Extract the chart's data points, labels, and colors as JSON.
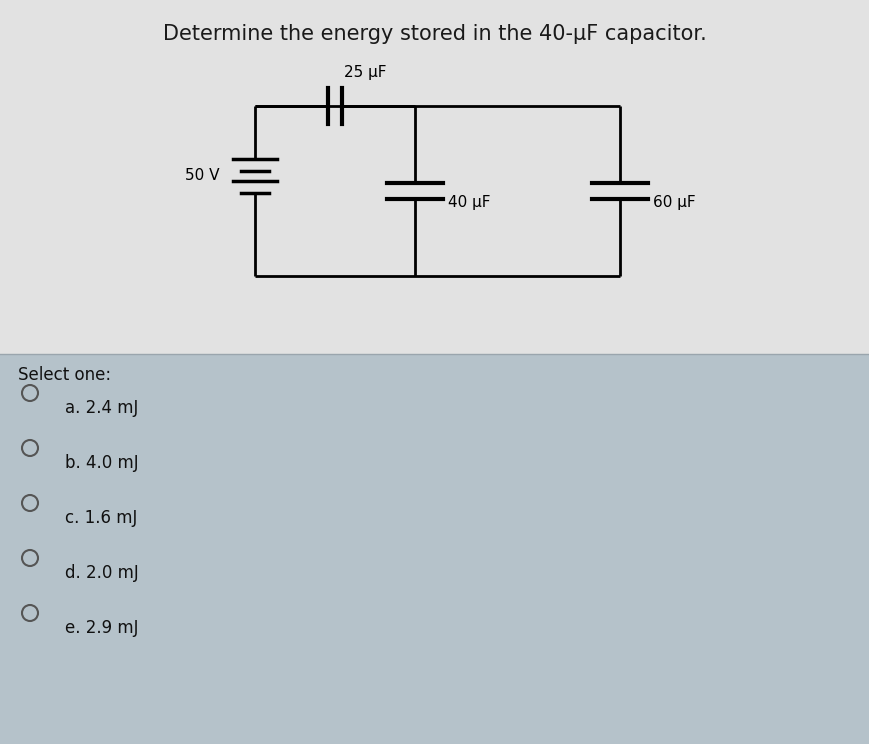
{
  "title": "Determine the energy stored in the 40-μF capacitor.",
  "bg_top_color": "#e8e8e8",
  "bg_bottom_color": "#b8c4cc",
  "circuit": {
    "voltage_source": "50 V",
    "cap1": "25 μF",
    "cap2": "40 μF",
    "cap3": "60 μF"
  },
  "select_one_label": "Select one:",
  "options": [
    "a. 2.4 mJ",
    "b. 4.0 mJ",
    "c. 1.6 mJ",
    "d. 2.0 mJ",
    "e. 2.9 mJ"
  ],
  "title_fontsize": 15,
  "option_fontsize": 12,
  "select_fontsize": 12,
  "circuit_lw": 2.0,
  "cap_plate_lw": 2.5
}
